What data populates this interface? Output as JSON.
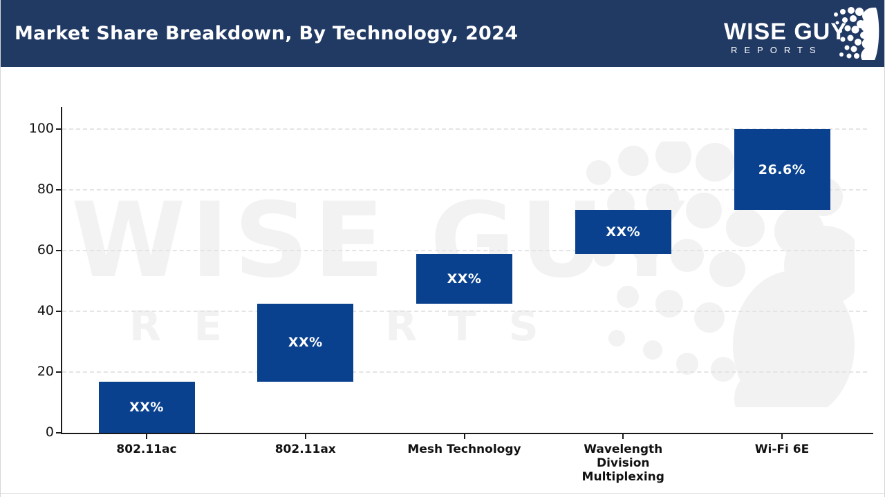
{
  "header": {
    "title": "Market Share Breakdown, By Technology, 2024",
    "bg_color": "#213a64",
    "brand": {
      "name": "WISE GUY",
      "tagline": "REPORTS"
    }
  },
  "watermark": {
    "line1": "WISE GUY",
    "line2": "REPORTS"
  },
  "chart_data": {
    "type": "bar",
    "subtype": "waterfall",
    "title": "Market Share Breakdown, By Technology, 2024",
    "categories": [
      "802.11ac",
      "802.11ax",
      "Mesh Technology",
      "Wavelength\nDivision\nMultiplexing",
      "Wi-Fi 6E"
    ],
    "bars": [
      {
        "category": "802.11ac",
        "start": 0,
        "end": 16.8,
        "value": 16.8,
        "label": "XX%"
      },
      {
        "category": "802.11ax",
        "start": 16.8,
        "end": 42.6,
        "value": 25.8,
        "label": "XX%"
      },
      {
        "category": "Mesh Technology",
        "start": 42.6,
        "end": 58.9,
        "value": 16.3,
        "label": "XX%"
      },
      {
        "category": "Wavelength\nDivision\nMultiplexing",
        "start": 58.9,
        "end": 73.4,
        "value": 14.5,
        "label": "XX%"
      },
      {
        "category": "Wi-Fi 6E",
        "start": 73.4,
        "end": 100,
        "value": 26.6,
        "label": "26.6%"
      }
    ],
    "xlabel": "",
    "ylabel": "",
    "ylim": [
      0,
      107
    ],
    "yticks": [
      0,
      20,
      40,
      60,
      80,
      100
    ],
    "grid": "horizontal-dashed",
    "legend": "none",
    "bar_color": "#09418f",
    "bar_label_color": "#ffffff",
    "axis_color": "#1a1a1a",
    "grid_color": "#e4e4e4",
    "watermark_color": "#f2f2f2"
  }
}
